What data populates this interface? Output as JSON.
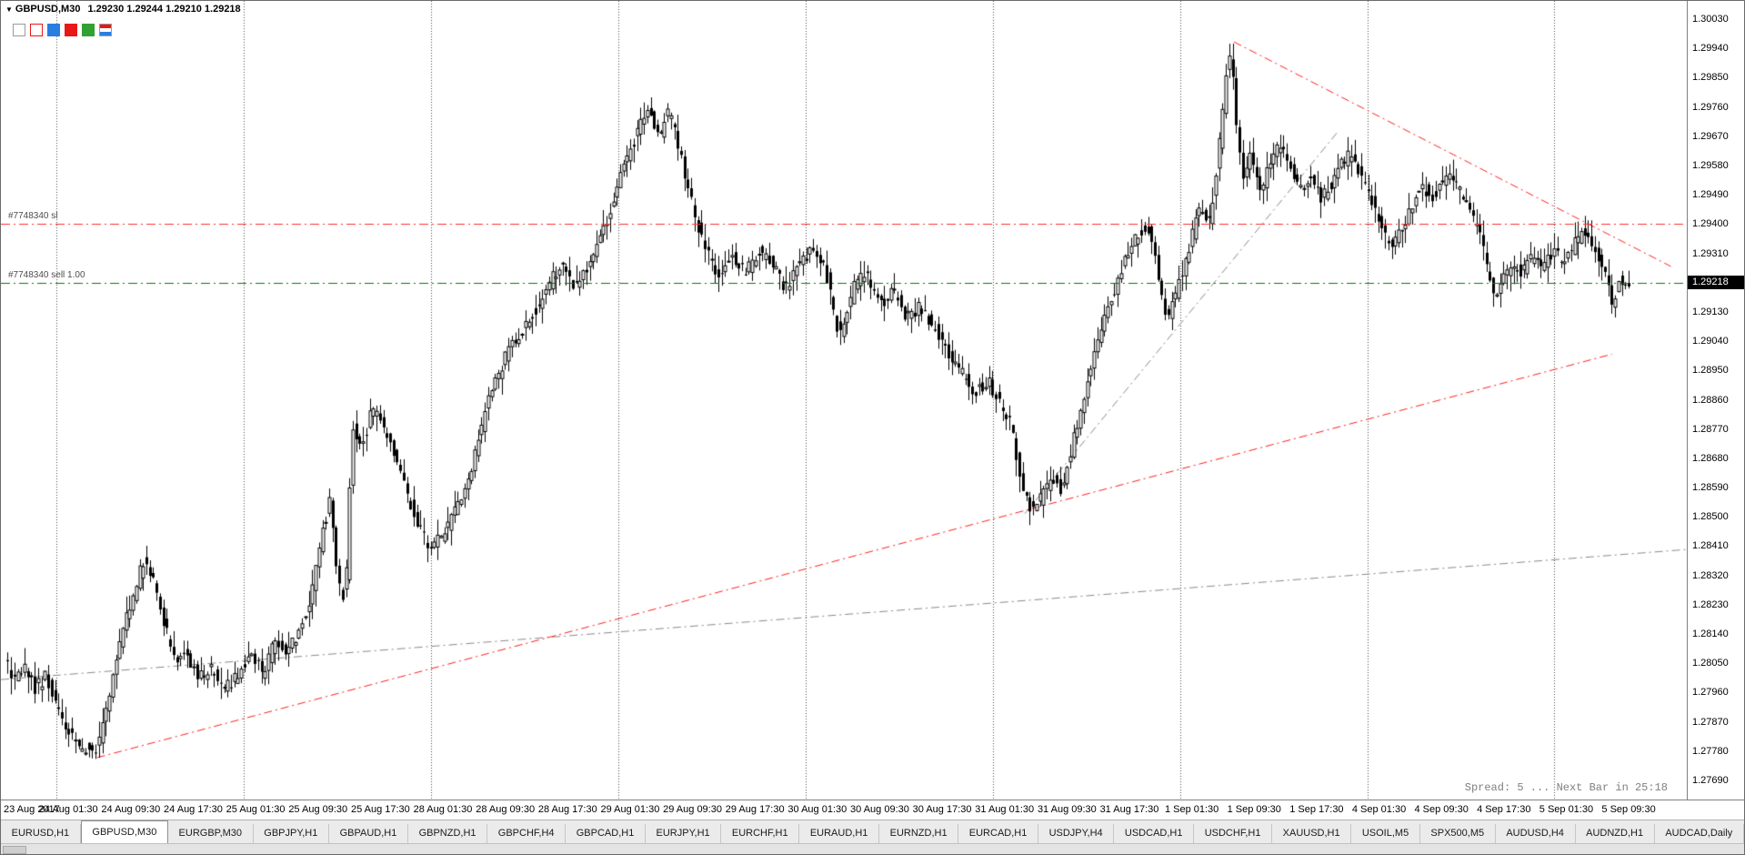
{
  "window": {
    "dropdown_icon": "▼",
    "title_symbol": "GBPUSD,M30",
    "ohlc": "1.29230 1.29244 1.29210 1.29218"
  },
  "toolbar": {
    "swatches": [
      {
        "name": "white-color-swatch-button",
        "fill": "#ffffff",
        "border": "#9a9a9a"
      },
      {
        "name": "red-outline-color-swatch-button",
        "fill": "#ffffff",
        "border": "#e81818"
      },
      {
        "name": "blue-color-swatch-button",
        "fill": "#2a7de1",
        "border": "#2a7de1"
      },
      {
        "name": "red-color-swatch-button",
        "fill": "#e81818",
        "border": "#e81818"
      },
      {
        "name": "green-color-swatch-button",
        "fill": "#33a033",
        "border": "#33a033"
      },
      {
        "name": "flag-color-swatch-button",
        "stripes": [
          "#e81818",
          "#ffffff",
          "#2a7de1"
        ]
      }
    ]
  },
  "chart_data": {
    "type": "candlestick",
    "symbol": "GBPUSD",
    "period": "M30",
    "current_price": "1.29218",
    "status_text": "Spread: 5 ... Next Bar in 25:18",
    "y_axis": {
      "max": 1.3003,
      "min": 1.2769,
      "step": 0.0009,
      "ticks": [
        "1.30030",
        "1.29940",
        "1.29850",
        "1.29760",
        "1.29670",
        "1.29580",
        "1.29490",
        "1.29400",
        "1.29310",
        "1.29220",
        "1.29130",
        "1.29040",
        "1.28950",
        "1.28860",
        "1.28770",
        "1.28680",
        "1.28590",
        "1.28500",
        "1.28410",
        "1.28320",
        "1.28230",
        "1.28140",
        "1.28050",
        "1.27960",
        "1.27870",
        "1.27780",
        "1.27690"
      ]
    },
    "x_axis": {
      "labels": [
        "23 Aug 2017",
        "24 Aug 01:30",
        "24 Aug 09:30",
        "24 Aug 17:30",
        "25 Aug 01:30",
        "25 Aug 09:30",
        "25 Aug 17:30",
        "28 Aug 01:30",
        "28 Aug 09:30",
        "28 Aug 17:30",
        "29 Aug 01:30",
        "29 Aug 09:30",
        "29 Aug 17:30",
        "30 Aug 01:30",
        "30 Aug 09:30",
        "30 Aug 17:30",
        "31 Aug 01:30",
        "31 Aug 09:30",
        "31 Aug 17:30",
        "1 Sep 01:30",
        "1 Sep 09:30",
        "1 Sep 17:30",
        "4 Sep 01:30",
        "4 Sep 09:30",
        "4 Sep 17:30",
        "5 Sep 01:30",
        "5 Sep 09:30"
      ]
    },
    "separators": [
      0.033,
      0.144,
      0.255,
      0.366,
      0.477,
      0.588,
      0.699,
      0.81,
      0.921
    ],
    "order_lines": [
      {
        "label": "#7748340 sl",
        "price": 1.294,
        "color": "#ff3030"
      },
      {
        "label": "#7748340 sell 1.00",
        "price": 1.29218,
        "color": "#008000"
      }
    ],
    "trendlines": [
      {
        "x1": 0.0,
        "p1": 1.28,
        "x2": 1.0,
        "p2": 1.284,
        "color": "#8a8a8a"
      },
      {
        "x1": 0.607,
        "p1": 1.2851,
        "x2": 0.792,
        "p2": 1.2968,
        "color": "#8a8a8a"
      },
      {
        "x1": 0.057,
        "p1": 1.2776,
        "x2": 0.955,
        "p2": 1.29,
        "color": "#ff2020"
      },
      {
        "x1": 0.731,
        "p1": 1.2996,
        "x2": 0.99,
        "p2": 1.2927,
        "color": "#ff2020"
      }
    ],
    "bars_total": 480,
    "first_bar_frac": 0.004,
    "last_bar_frac": 0.965,
    "candle_colors": {
      "up_fill": "#ffffff",
      "down_fill": "#000000",
      "outline": "#000000"
    },
    "price_path": [
      [
        0.004,
        1.2806
      ],
      [
        0.01,
        1.2799
      ],
      [
        0.016,
        1.2804
      ],
      [
        0.022,
        1.2797
      ],
      [
        0.028,
        1.2801
      ],
      [
        0.034,
        1.2793
      ],
      [
        0.04,
        1.2786
      ],
      [
        0.047,
        1.278
      ],
      [
        0.053,
        1.27785
      ],
      [
        0.058,
        1.2778
      ],
      [
        0.064,
        1.279
      ],
      [
        0.071,
        1.2809
      ],
      [
        0.079,
        1.2824
      ],
      [
        0.086,
        1.2836
      ],
      [
        0.092,
        1.283
      ],
      [
        0.098,
        1.2818
      ],
      [
        0.105,
        1.2806
      ],
      [
        0.112,
        1.2808
      ],
      [
        0.119,
        1.28
      ],
      [
        0.127,
        1.2804
      ],
      [
        0.134,
        1.2797
      ],
      [
        0.142,
        1.2801
      ],
      [
        0.15,
        1.2807
      ],
      [
        0.157,
        1.2802
      ],
      [
        0.164,
        1.2812
      ],
      [
        0.171,
        1.2808
      ],
      [
        0.179,
        1.2815
      ],
      [
        0.187,
        1.2828
      ],
      [
        0.192,
        1.2845
      ],
      [
        0.197,
        1.2855
      ],
      [
        0.201,
        1.2832
      ],
      [
        0.206,
        1.2824
      ],
      [
        0.21,
        1.2878
      ],
      [
        0.216,
        1.2872
      ],
      [
        0.222,
        1.2883
      ],
      [
        0.228,
        1.2878
      ],
      [
        0.235,
        1.287
      ],
      [
        0.242,
        1.2858
      ],
      [
        0.25,
        1.2846
      ],
      [
        0.257,
        1.284
      ],
      [
        0.264,
        1.2845
      ],
      [
        0.271,
        1.2852
      ],
      [
        0.279,
        1.2862
      ],
      [
        0.287,
        1.2878
      ],
      [
        0.294,
        1.2891
      ],
      [
        0.302,
        1.29
      ],
      [
        0.31,
        1.2907
      ],
      [
        0.318,
        1.2913
      ],
      [
        0.326,
        1.2921
      ],
      [
        0.334,
        1.2928
      ],
      [
        0.342,
        1.292
      ],
      [
        0.35,
        1.2928
      ],
      [
        0.357,
        1.2935
      ],
      [
        0.364,
        1.2945
      ],
      [
        0.371,
        1.2958
      ],
      [
        0.379,
        1.2968
      ],
      [
        0.386,
        1.2975
      ],
      [
        0.392,
        1.2967
      ],
      [
        0.398,
        1.2975
      ],
      [
        0.405,
        1.296
      ],
      [
        0.412,
        1.2945
      ],
      [
        0.419,
        1.2932
      ],
      [
        0.427,
        1.2925
      ],
      [
        0.435,
        1.293
      ],
      [
        0.443,
        1.2925
      ],
      [
        0.451,
        1.2932
      ],
      [
        0.459,
        1.2928
      ],
      [
        0.467,
        1.292
      ],
      [
        0.475,
        1.2928
      ],
      [
        0.483,
        1.2932
      ],
      [
        0.491,
        1.2925
      ],
      [
        0.499,
        1.2905
      ],
      [
        0.507,
        1.292
      ],
      [
        0.515,
        1.2925
      ],
      [
        0.523,
        1.2915
      ],
      [
        0.531,
        1.292
      ],
      [
        0.539,
        1.2911
      ],
      [
        0.547,
        1.2915
      ],
      [
        0.555,
        1.2908
      ],
      [
        0.563,
        1.29
      ],
      [
        0.571,
        1.2895
      ],
      [
        0.579,
        1.2888
      ],
      [
        0.587,
        1.2892
      ],
      [
        0.594,
        1.2885
      ],
      [
        0.601,
        1.2878
      ],
      [
        0.607,
        1.286
      ],
      [
        0.613,
        1.2852
      ],
      [
        0.619,
        1.2856
      ],
      [
        0.625,
        1.2862
      ],
      [
        0.631,
        1.2858
      ],
      [
        0.637,
        1.2872
      ],
      [
        0.644,
        1.2888
      ],
      [
        0.651,
        1.2902
      ],
      [
        0.659,
        1.2915
      ],
      [
        0.667,
        1.2928
      ],
      [
        0.674,
        1.2935
      ],
      [
        0.681,
        1.294
      ],
      [
        0.687,
        1.2928
      ],
      [
        0.693,
        1.291
      ],
      [
        0.7,
        1.2922
      ],
      [
        0.706,
        1.2932
      ],
      [
        0.712,
        1.2945
      ],
      [
        0.718,
        1.294
      ],
      [
        0.723,
        1.2958
      ],
      [
        0.728,
        1.2985
      ],
      [
        0.731,
        1.2993
      ],
      [
        0.734,
        1.297
      ],
      [
        0.738,
        1.2955
      ],
      [
        0.743,
        1.2962
      ],
      [
        0.748,
        1.295
      ],
      [
        0.754,
        1.2958
      ],
      [
        0.76,
        1.2965
      ],
      [
        0.766,
        1.2958
      ],
      [
        0.772,
        1.295
      ],
      [
        0.778,
        1.2955
      ],
      [
        0.784,
        1.2948
      ],
      [
        0.79,
        1.2952
      ],
      [
        0.796,
        1.2958
      ],
      [
        0.802,
        1.2962
      ],
      [
        0.808,
        1.2955
      ],
      [
        0.814,
        1.2948
      ],
      [
        0.82,
        1.294
      ],
      [
        0.826,
        1.2932
      ],
      [
        0.832,
        1.2938
      ],
      [
        0.838,
        1.2945
      ],
      [
        0.844,
        1.2952
      ],
      [
        0.85,
        1.2948
      ],
      [
        0.856,
        1.2952
      ],
      [
        0.862,
        1.2955
      ],
      [
        0.868,
        1.2948
      ],
      [
        0.874,
        1.2942
      ],
      [
        0.88,
        1.2935
      ],
      [
        0.886,
        1.2918
      ],
      [
        0.892,
        1.2922
      ],
      [
        0.898,
        1.2928
      ],
      [
        0.904,
        1.2925
      ],
      [
        0.91,
        1.293
      ],
      [
        0.916,
        1.2926
      ],
      [
        0.922,
        1.2932
      ],
      [
        0.928,
        1.2928
      ],
      [
        0.934,
        1.2933
      ],
      [
        0.94,
        1.2938
      ],
      [
        0.946,
        1.2932
      ],
      [
        0.952,
        1.2928
      ],
      [
        0.957,
        1.2915
      ],
      [
        0.961,
        1.2923
      ],
      [
        0.965,
        1.29218
      ]
    ]
  },
  "tabs": {
    "active_index": 1,
    "items": [
      "EURUSD,H1",
      "GBPUSD,M30",
      "EURGBP,M30",
      "GBPJPY,H1",
      "GBPAUD,H1",
      "GBPNZD,H1",
      "GBPCHF,H4",
      "GBPCAD,H1",
      "EURJPY,H1",
      "EURCHF,H1",
      "EURAUD,H1",
      "EURNZD,H1",
      "EURCAD,H1",
      "USDJPY,H4",
      "USDCAD,H1",
      "USDCHF,H1",
      "XAUUSD,H1",
      "USOIL,M5",
      "SPX500,M5",
      "AUDUSD,H4",
      "AUDNZD,H1",
      "AUDCAD,Daily"
    ]
  }
}
